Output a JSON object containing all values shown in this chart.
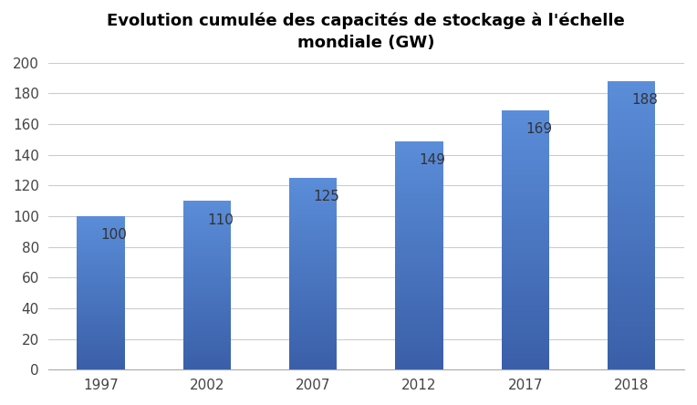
{
  "title": "Evolution cumulée des capacités de stockage à l'échelle\nmondiale (GW)",
  "categories": [
    "1997",
    "2002",
    "2007",
    "2012",
    "2017",
    "2018"
  ],
  "values": [
    100,
    110,
    125,
    149,
    169,
    188
  ],
  "bar_color_top": "#5B8DD9",
  "bar_color_bottom": "#3A5FA8",
  "label_color": "#333333",
  "ylim": [
    0,
    200
  ],
  "yticks": [
    0,
    20,
    40,
    60,
    80,
    100,
    120,
    140,
    160,
    180,
    200
  ],
  "grid_color": "#CCCCCC",
  "bg_color": "#FFFFFF",
  "title_fontsize": 13,
  "label_fontsize": 11,
  "tick_fontsize": 11,
  "bar_width": 0.45
}
